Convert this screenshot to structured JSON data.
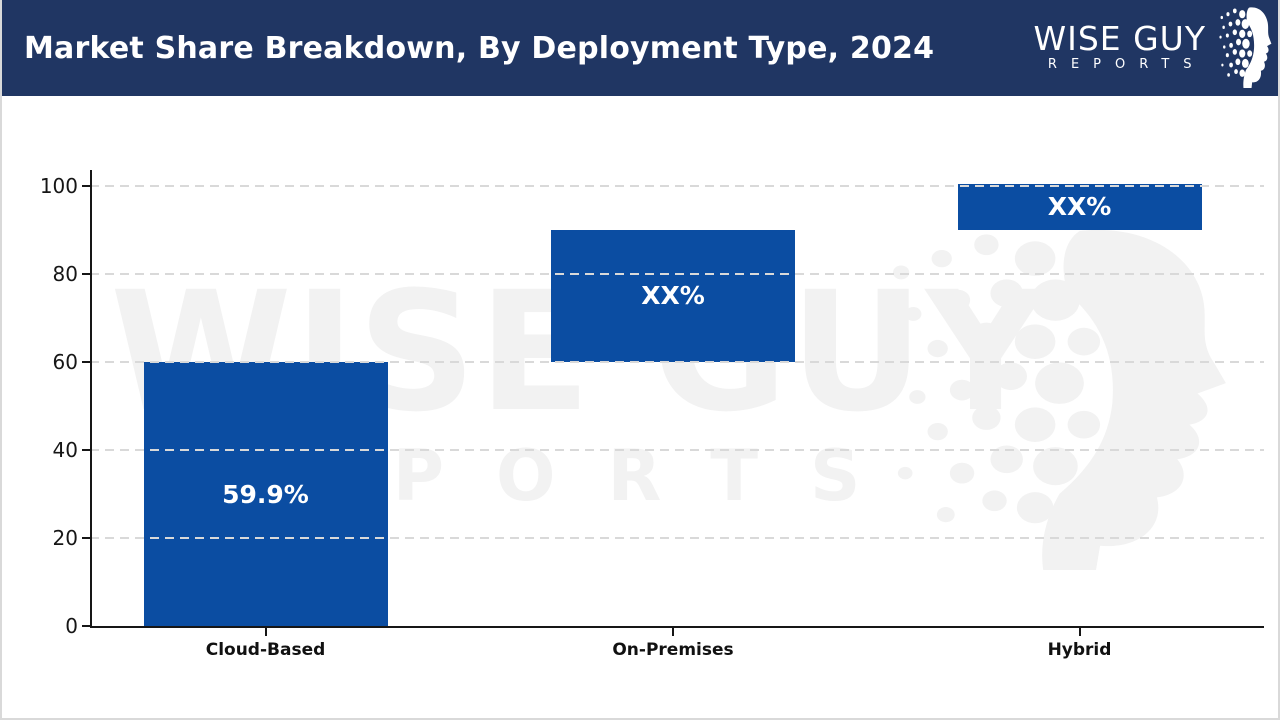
{
  "header": {
    "title": "Market Share Breakdown, By Deployment Type, 2024",
    "background_color": "#203663",
    "logo": {
      "line1": "WISE GUY",
      "line2": "REPORTS",
      "face_icon": "dotted-head-profile"
    }
  },
  "watermark": {
    "line1": "WISE GUY",
    "line2": "REPORTS",
    "face_icon": "dotted-head-profile",
    "color": "#f2f2f2"
  },
  "chart_data": {
    "type": "bar",
    "subtype": "waterfall",
    "title": "Market Share Breakdown, By Deployment Type, 2024",
    "categories": [
      "Cloud-Based",
      "On-Premises",
      "Hybrid"
    ],
    "segments": [
      {
        "category": "Cloud-Based",
        "start": 0,
        "end": 59.9,
        "label": "59.9%"
      },
      {
        "category": "On-Premises",
        "start": 59.9,
        "end": 90.1,
        "label": "XX%"
      },
      {
        "category": "Hybrid",
        "start": 90.1,
        "end": 100.4,
        "label": "XX%"
      }
    ],
    "yticks": [
      0,
      20,
      40,
      60,
      80,
      100
    ],
    "ylim": [
      0,
      103.6
    ],
    "xlabel": "",
    "ylabel": "",
    "legend": "none",
    "grid": "horizontal-dashed-over-bars",
    "bar_color": "#0b4da2",
    "gridline_color": "#d9d9d9",
    "axis_color": "#161616",
    "value_label_color": "#ffffff"
  }
}
